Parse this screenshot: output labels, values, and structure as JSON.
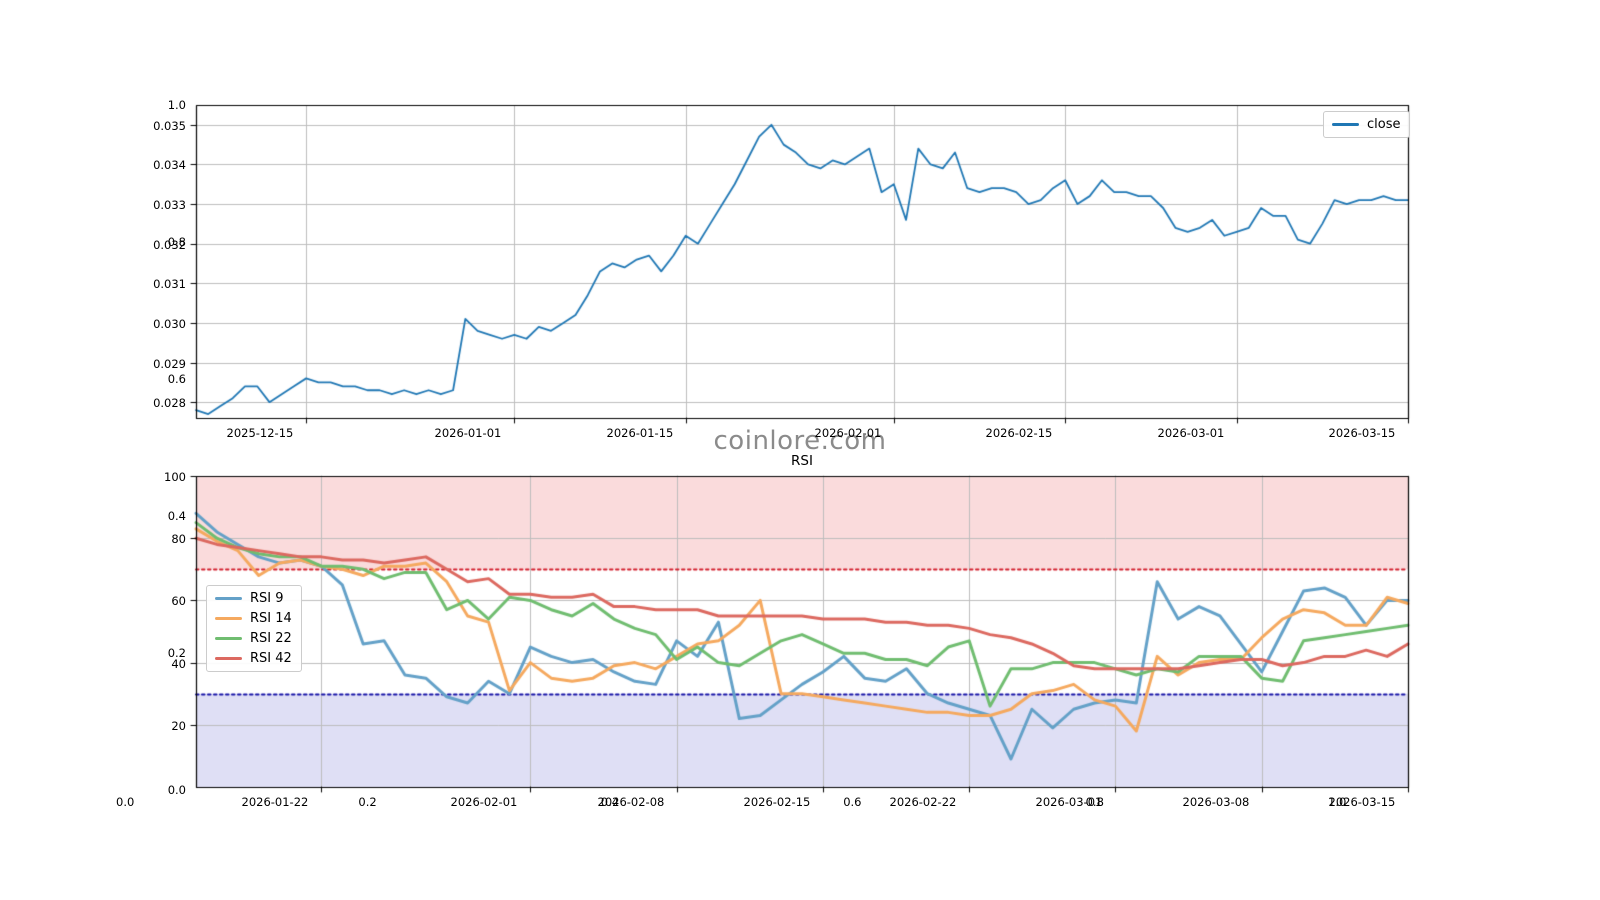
{
  "watermark": "coinlore.com",
  "colors": {
    "price_line": "#1f77b4",
    "rsi9": "#64a1c8",
    "rsi14": "#f5a95f",
    "rsi22": "#70bd70",
    "rsi42": "#dc6960",
    "overbought_band": "#fadbdc",
    "oversold_band": "#dfdff5",
    "overbought_line": "#d32230",
    "oversold_line": "#1a17a8",
    "grid": "#bdbdbd",
    "spine": "#000000"
  },
  "overlay_axis": {
    "yticks": [
      "1.0",
      "0.8",
      "0.6",
      "0.4",
      "0.2",
      "0.0"
    ],
    "xticks": [
      "0.0",
      "0.2",
      "0.4",
      "0.6",
      "0.8",
      "1.0"
    ]
  },
  "chart_data": [
    {
      "id": "price",
      "type": "line",
      "title": "",
      "legend_position": "upper right",
      "grid": true,
      "x_start": "2025-12-06",
      "x_freq": "daily",
      "xticks": [
        "2025-12-15",
        "2026-01-01",
        "2026-01-15",
        "2026-02-01",
        "2026-02-15",
        "2026-03-01",
        "2026-03-15"
      ],
      "yticks": [
        0.028,
        0.029,
        0.03,
        0.031,
        0.032,
        0.033,
        0.034,
        0.035
      ],
      "ylim": [
        0.0276,
        0.0355
      ],
      "series": [
        {
          "name": "close",
          "values": [
            0.0278,
            0.0277,
            0.0279,
            0.0281,
            0.0284,
            0.0284,
            0.028,
            0.0282,
            0.0284,
            0.0286,
            0.0285,
            0.0285,
            0.0284,
            0.0284,
            0.0283,
            0.0283,
            0.0282,
            0.0283,
            0.0282,
            0.0283,
            0.0282,
            0.0283,
            0.0301,
            0.0298,
            0.0297,
            0.0296,
            0.0297,
            0.0296,
            0.0299,
            0.0298,
            0.03,
            0.0302,
            0.0307,
            0.0313,
            0.0315,
            0.0314,
            0.0316,
            0.0317,
            0.0313,
            0.0317,
            0.0322,
            0.032,
            0.0325,
            0.033,
            0.0335,
            0.0341,
            0.0347,
            0.035,
            0.0345,
            0.0343,
            0.034,
            0.0339,
            0.0341,
            0.034,
            0.0342,
            0.0344,
            0.0333,
            0.0335,
            0.0326,
            0.0344,
            0.034,
            0.0339,
            0.0343,
            0.0334,
            0.0333,
            0.0334,
            0.0334,
            0.0333,
            0.033,
            0.0331,
            0.0334,
            0.0336,
            0.033,
            0.0332,
            0.0336,
            0.0333,
            0.0333,
            0.0332,
            0.0332,
            0.0329,
            0.0324,
            0.0323,
            0.0324,
            0.0326,
            0.0322,
            0.0323,
            0.0324,
            0.0329,
            0.0327,
            0.0327,
            0.0321,
            0.032,
            0.0325,
            0.0331,
            0.033,
            0.0331,
            0.0331,
            0.0332,
            0.0331,
            0.0331
          ]
        }
      ]
    },
    {
      "id": "rsi",
      "type": "line",
      "title": "RSI",
      "legend_position": "center left",
      "grid": true,
      "x_start": "2026-01-16",
      "x_freq": "daily",
      "xticks": [
        "2026-01-22",
        "2026-02-01",
        "2026-02-08",
        "2026-02-15",
        "2026-02-22",
        "2026-03-01",
        "2026-03-08",
        "2026-03-15"
      ],
      "yticks": [
        20,
        40,
        60,
        80,
        100
      ],
      "ylim": [
        0,
        100
      ],
      "hlines": [
        {
          "y": 70,
          "style": "dotted",
          "color_key": "overbought_line"
        },
        {
          "y": 30,
          "style": "dotted",
          "color_key": "oversold_line"
        }
      ],
      "bands": [
        {
          "from": 70,
          "to": 100,
          "color_key": "overbought_band"
        },
        {
          "from": 0,
          "to": 30,
          "color_key": "oversold_band"
        }
      ],
      "series": [
        {
          "name": "RSI 9",
          "color_key": "rsi9",
          "values": [
            88,
            82,
            78,
            74,
            72,
            73,
            71,
            65,
            46,
            47,
            36,
            35,
            29,
            27,
            34,
            30,
            45,
            42,
            40,
            41,
            37,
            34,
            33,
            47,
            42,
            53,
            22,
            23,
            28,
            33,
            37,
            42,
            35,
            34,
            38,
            30,
            27,
            25,
            23,
            9,
            25,
            19,
            25,
            27,
            28,
            27,
            66,
            54,
            58,
            55,
            46,
            37,
            50,
            63,
            64,
            61,
            52,
            60,
            60
          ]
        },
        {
          "name": "RSI 14",
          "color_key": "rsi14",
          "values": [
            83,
            79,
            76,
            68,
            72,
            73,
            71,
            70,
            68,
            71,
            71,
            72,
            66,
            55,
            53,
            31,
            40,
            35,
            34,
            35,
            39,
            40,
            38,
            42,
            46,
            47,
            52,
            60,
            30,
            30,
            29,
            28,
            27,
            26,
            25,
            24,
            24,
            23,
            23,
            25,
            30,
            31,
            33,
            28,
            26,
            18,
            42,
            36,
            40,
            41,
            41,
            48,
            54,
            57,
            56,
            52,
            52,
            61,
            59
          ]
        },
        {
          "name": "RSI 22",
          "color_key": "rsi22",
          "values": [
            85,
            80,
            77,
            75,
            74,
            74,
            71,
            71,
            70,
            67,
            69,
            69,
            57,
            60,
            54,
            61,
            60,
            57,
            55,
            59,
            54,
            51,
            49,
            41,
            45,
            40,
            39,
            43,
            47,
            49,
            46,
            43,
            43,
            41,
            41,
            39,
            45,
            47,
            26,
            38,
            38,
            40,
            40,
            40,
            38,
            36,
            38,
            37,
            42,
            42,
            42,
            35,
            34,
            47,
            48,
            49,
            50,
            51,
            52
          ]
        },
        {
          "name": "RSI 42",
          "color_key": "rsi42",
          "values": [
            80,
            78,
            77,
            76,
            75,
            74,
            74,
            73,
            73,
            72,
            73,
            74,
            70,
            66,
            67,
            62,
            62,
            61,
            61,
            62,
            58,
            58,
            57,
            57,
            57,
            55,
            55,
            55,
            55,
            55,
            54,
            54,
            54,
            53,
            53,
            52,
            52,
            51,
            49,
            48,
            46,
            43,
            39,
            38,
            38,
            38,
            38,
            38,
            39,
            40,
            41,
            41,
            39,
            40,
            42,
            42,
            44,
            42,
            46
          ]
        }
      ]
    }
  ]
}
